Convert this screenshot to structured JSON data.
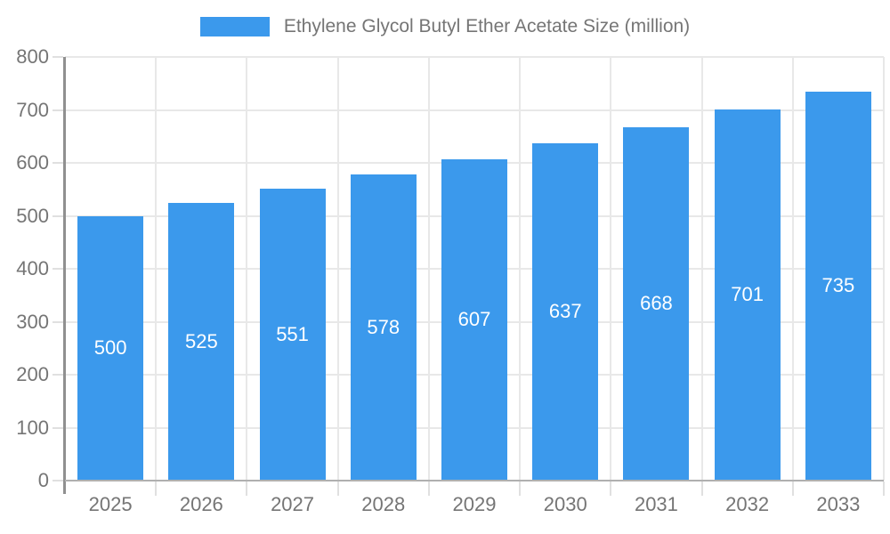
{
  "legend": {
    "label": "Ethylene Glycol Butyl Ether Acetate Size (million)"
  },
  "chart_data": {
    "type": "bar",
    "title": "Ethylene Glycol Butyl Ether Acetate Size (million)",
    "series_name": "Ethylene Glycol Butyl Ether Acetate Size (million)",
    "categories": [
      "2025",
      "2026",
      "2027",
      "2028",
      "2029",
      "2030",
      "2031",
      "2032",
      "2033"
    ],
    "values": [
      500,
      525,
      551,
      578,
      607,
      637,
      668,
      701,
      735
    ],
    "xlabel": "",
    "ylabel": "",
    "ylim": [
      0,
      800
    ],
    "y_ticks": [
      0,
      100,
      200,
      300,
      400,
      500,
      600,
      700,
      800
    ],
    "grid": true,
    "legend_position": "top",
    "bar_labels_shown": true,
    "colors": {
      "bar": "#3b99ec",
      "bar_label_text": "#ffffff",
      "axis_text": "#757575",
      "legend_text": "#757575",
      "gridline": "#e8e8e8",
      "y_axis_line": "#909090",
      "x_axis_line": "#b0b0b0",
      "background": "#ffffff"
    }
  }
}
